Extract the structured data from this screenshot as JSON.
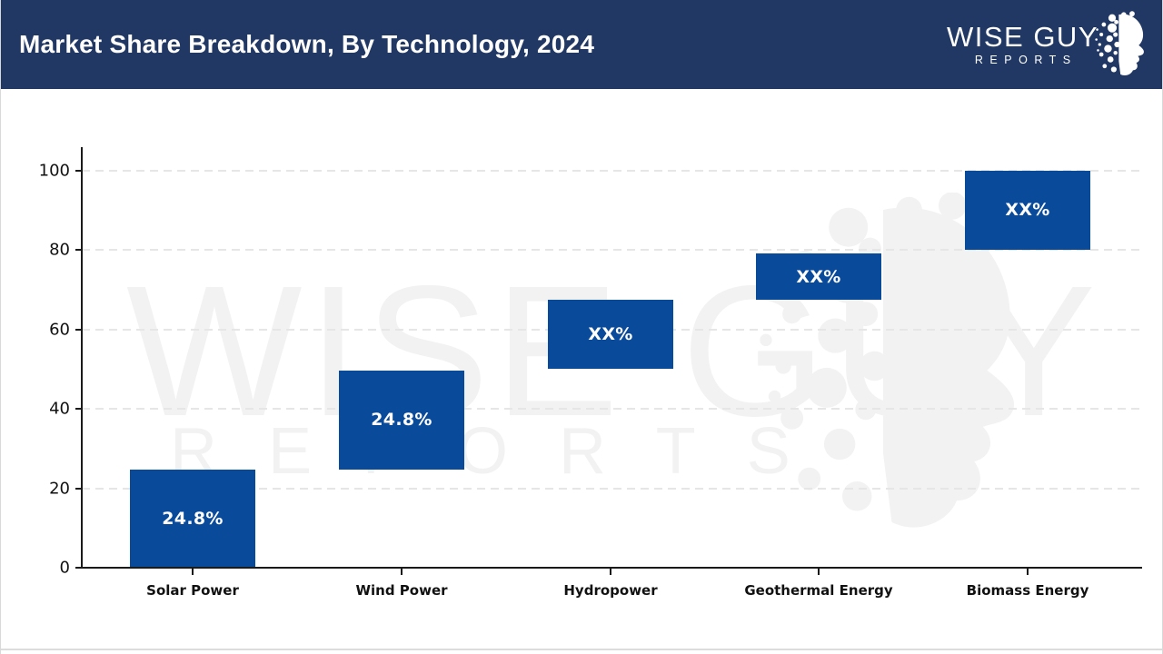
{
  "header": {
    "title": "Market Share Breakdown, By Technology, 2024",
    "bg_color": "#213864",
    "logo": {
      "line1": "WISE GUY",
      "line2": "REPORTS"
    }
  },
  "watermark": {
    "line1": "WISE GUY",
    "line2": "REPORTS"
  },
  "chart_data": {
    "type": "bar",
    "subtype": "waterfall-floating-bars",
    "title": "Market Share Breakdown, By Technology, 2024",
    "categories": [
      "Solar Power",
      "Wind Power",
      "Hydropower",
      "Geothermal Energy",
      "Biomass Energy"
    ],
    "bars": [
      {
        "category": "Solar Power",
        "start": 0,
        "end": 24.8,
        "label": "24.8%"
      },
      {
        "category": "Wind Power",
        "start": 24.8,
        "end": 49.6,
        "label": "24.8%"
      },
      {
        "category": "Hydropower",
        "start": 50,
        "end": 67.5,
        "label": "XX%"
      },
      {
        "category": "Geothermal Energy",
        "start": 67.5,
        "end": 79,
        "label": "XX%"
      },
      {
        "category": "Biomass Energy",
        "start": 80,
        "end": 100,
        "label": "XX%"
      }
    ],
    "yticks": [
      0,
      20,
      40,
      60,
      80,
      100
    ],
    "ylim": [
      0,
      105
    ],
    "xlabel": "",
    "ylabel": "",
    "legend": "none",
    "grid": "horizontal-dashed",
    "bar_color": "#0a4a9b",
    "bar_label_color": "#ffffff",
    "axis_color": "#1a1a1a",
    "gridline_color": "#e6e6e6"
  }
}
